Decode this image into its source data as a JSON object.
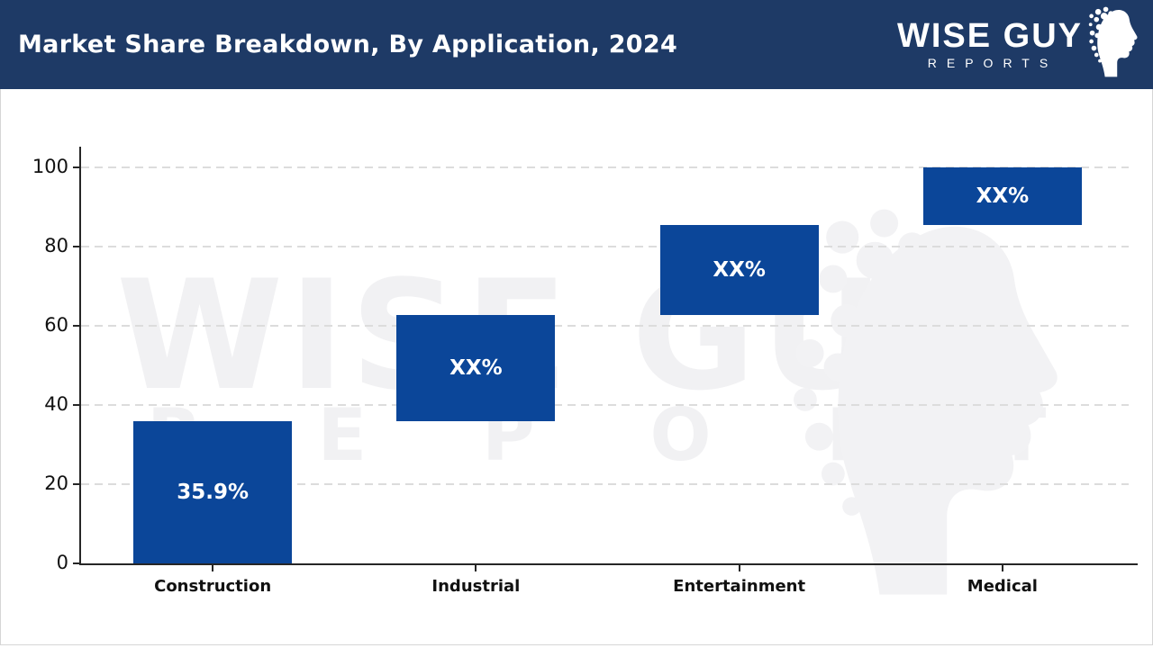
{
  "header": {
    "title": "Market Share Breakdown, By Application, 2024",
    "bg_color": "#1e3a66",
    "logo": {
      "wordmark": "WISE GUY",
      "subtext": "REPORTS"
    }
  },
  "watermark": {
    "wordmark": "WISE GUY",
    "subtext": "R E P O R T S"
  },
  "chart_data": {
    "type": "bar",
    "subtype": "floating-waterfall",
    "title": "Market Share Breakdown, By Application, 2024",
    "categories": [
      "Construction",
      "Industrial",
      "Entertainment",
      "Medical"
    ],
    "series": [
      {
        "name": "Market share (%)",
        "segments": [
          {
            "category": "Construction",
            "start": 0,
            "end": 35.9,
            "label": "35.9%"
          },
          {
            "category": "Industrial",
            "start": 35.9,
            "end": 62.7,
            "label": "XX%"
          },
          {
            "category": "Entertainment",
            "start": 62.7,
            "end": 85.4,
            "label": "XX%"
          },
          {
            "category": "Medical",
            "start": 85.4,
            "end": 100,
            "label": "XX%"
          }
        ]
      }
    ],
    "xlabel": "",
    "ylabel": "",
    "ylim": [
      0,
      105
    ],
    "yticks": [
      0,
      20,
      40,
      60,
      80,
      100
    ],
    "grid": "horizontal dashed",
    "legend": "none",
    "bar_color": "#0b4699",
    "bar_label_color": "#ffffff",
    "axis_color": "#262626",
    "gridline_color": "#dcdcdc",
    "tick_label_color": "#111111"
  }
}
